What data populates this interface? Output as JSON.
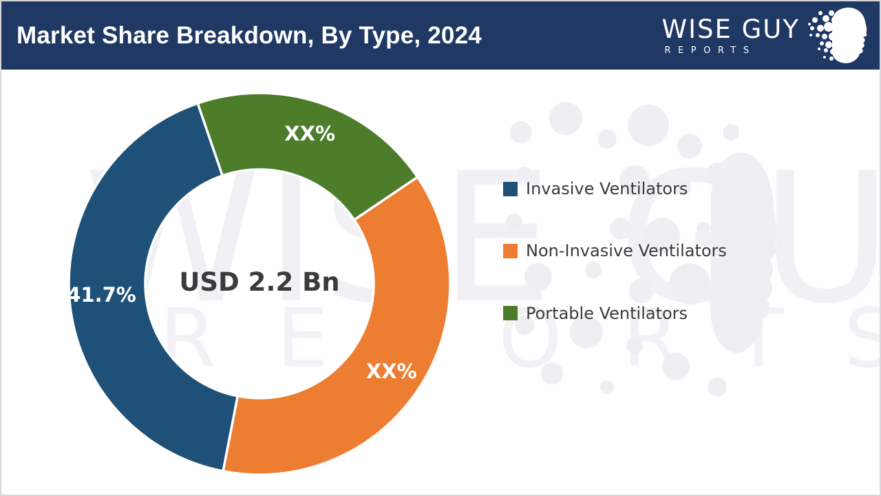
{
  "header": {
    "title": "Market Share Breakdown, By Type, 2024",
    "bg_color": "#203864",
    "logo": {
      "line1": "WISE GUY",
      "line2": "REPORTS"
    }
  },
  "watermark": {
    "line1": "WISE GUY",
    "line2": "REPORTS"
  },
  "chart_data": {
    "type": "pie",
    "subtype": "donut",
    "title": "Market Share Breakdown, By Type, 2024",
    "center_label": "USD 2.2 Bn",
    "start_angle_deg": 191,
    "legend_position": "right",
    "segments": [
      {
        "label": "Invasive Ventilators",
        "display_value": "41.7%",
        "percent": 41.7,
        "sweep_deg": 150.1,
        "color": "#1F5078"
      },
      {
        "label": "Portable Ventilators",
        "display_value": "XX%",
        "percent": 20.8,
        "sweep_deg": 74.9,
        "color": "#4D7D2B"
      },
      {
        "label": "Non-Invasive Ventilators",
        "display_value": "XX%",
        "percent": 37.5,
        "sweep_deg": 135.0,
        "color": "#ED7D31"
      }
    ]
  },
  "legend": {
    "items": [
      {
        "label": "Invasive Ventilators",
        "color": "#1F5078"
      },
      {
        "label": "Non-Invasive Ventilators",
        "color": "#ED7D31"
      },
      {
        "label": "Portable Ventilators",
        "color": "#4D7D2B"
      }
    ]
  },
  "colors": {
    "header_navy": "#203864",
    "blue": "#1F5078",
    "orange": "#ED7D31",
    "green": "#4D7D2B",
    "text_dark": "#3A3A3A",
    "watermark_gray": "#F1F1F5"
  }
}
